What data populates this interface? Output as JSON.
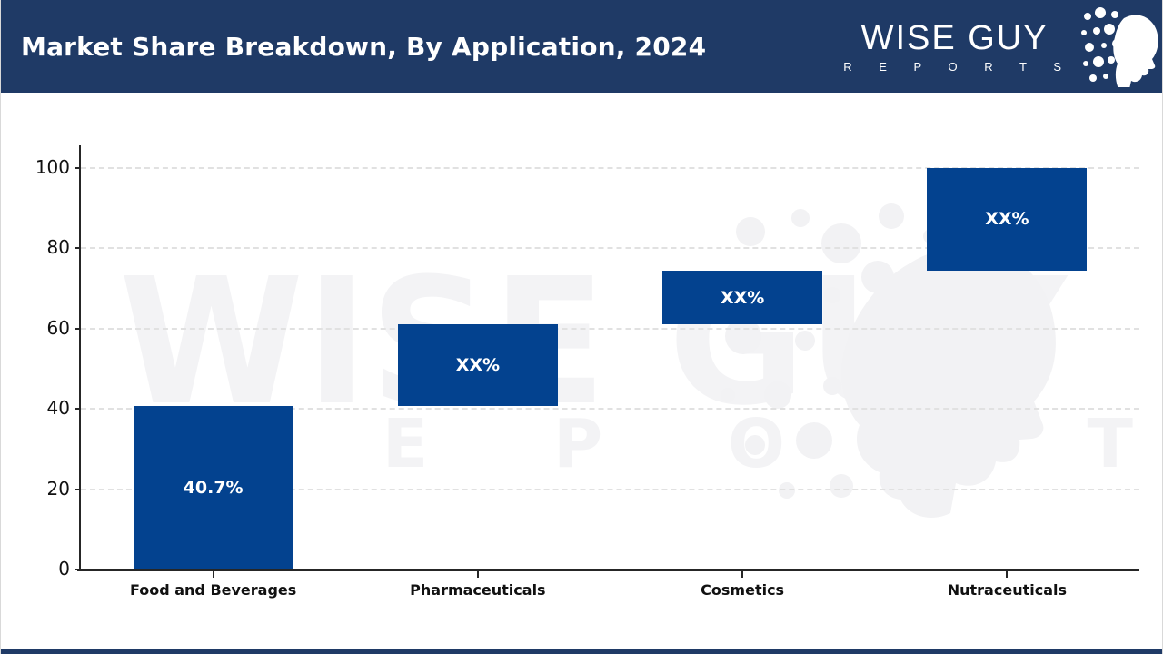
{
  "header": {
    "title": "Market Share Breakdown, By Application, 2024",
    "logo_line1": "WISE GUY",
    "logo_line2": "R E P O R T S"
  },
  "watermark": {
    "line1": "WISE GUY",
    "line2": "R E P O R T S"
  },
  "colors": {
    "header_bg": "#1f3a66",
    "footer_bg": "#1f3a66",
    "bar_blue": "#03428f",
    "bar_label_white": "#ffffff",
    "watermark_gray": "#f3f3f5",
    "gridline_gray": "#e1e1e1",
    "axis_dark": "#262626"
  },
  "chart_data": {
    "type": "bar",
    "subtype": "waterfall",
    "title": "Market Share Breakdown, By Application, 2024",
    "categories": [
      "Food and Beverages",
      "Pharmaceuticals",
      "Cosmetics",
      "Nutraceuticals"
    ],
    "segments": [
      {
        "category": "Food and Beverages",
        "start": 0,
        "end": 40.7,
        "label": "40.7%"
      },
      {
        "category": "Pharmaceuticals",
        "start": 40.7,
        "end": 61,
        "label": "XX%"
      },
      {
        "category": "Cosmetics",
        "start": 61,
        "end": 74.5,
        "label": "XX%"
      },
      {
        "category": "Nutraceuticals",
        "start": 74.5,
        "end": 100,
        "label": "XX%"
      }
    ],
    "ylim": [
      0,
      100
    ],
    "yticks": [
      0,
      20,
      40,
      60,
      80,
      100
    ],
    "grid": "horizontal-dashed",
    "legend": "none",
    "bar_color": "#03428f",
    "value_label_color": "#ffffff"
  }
}
